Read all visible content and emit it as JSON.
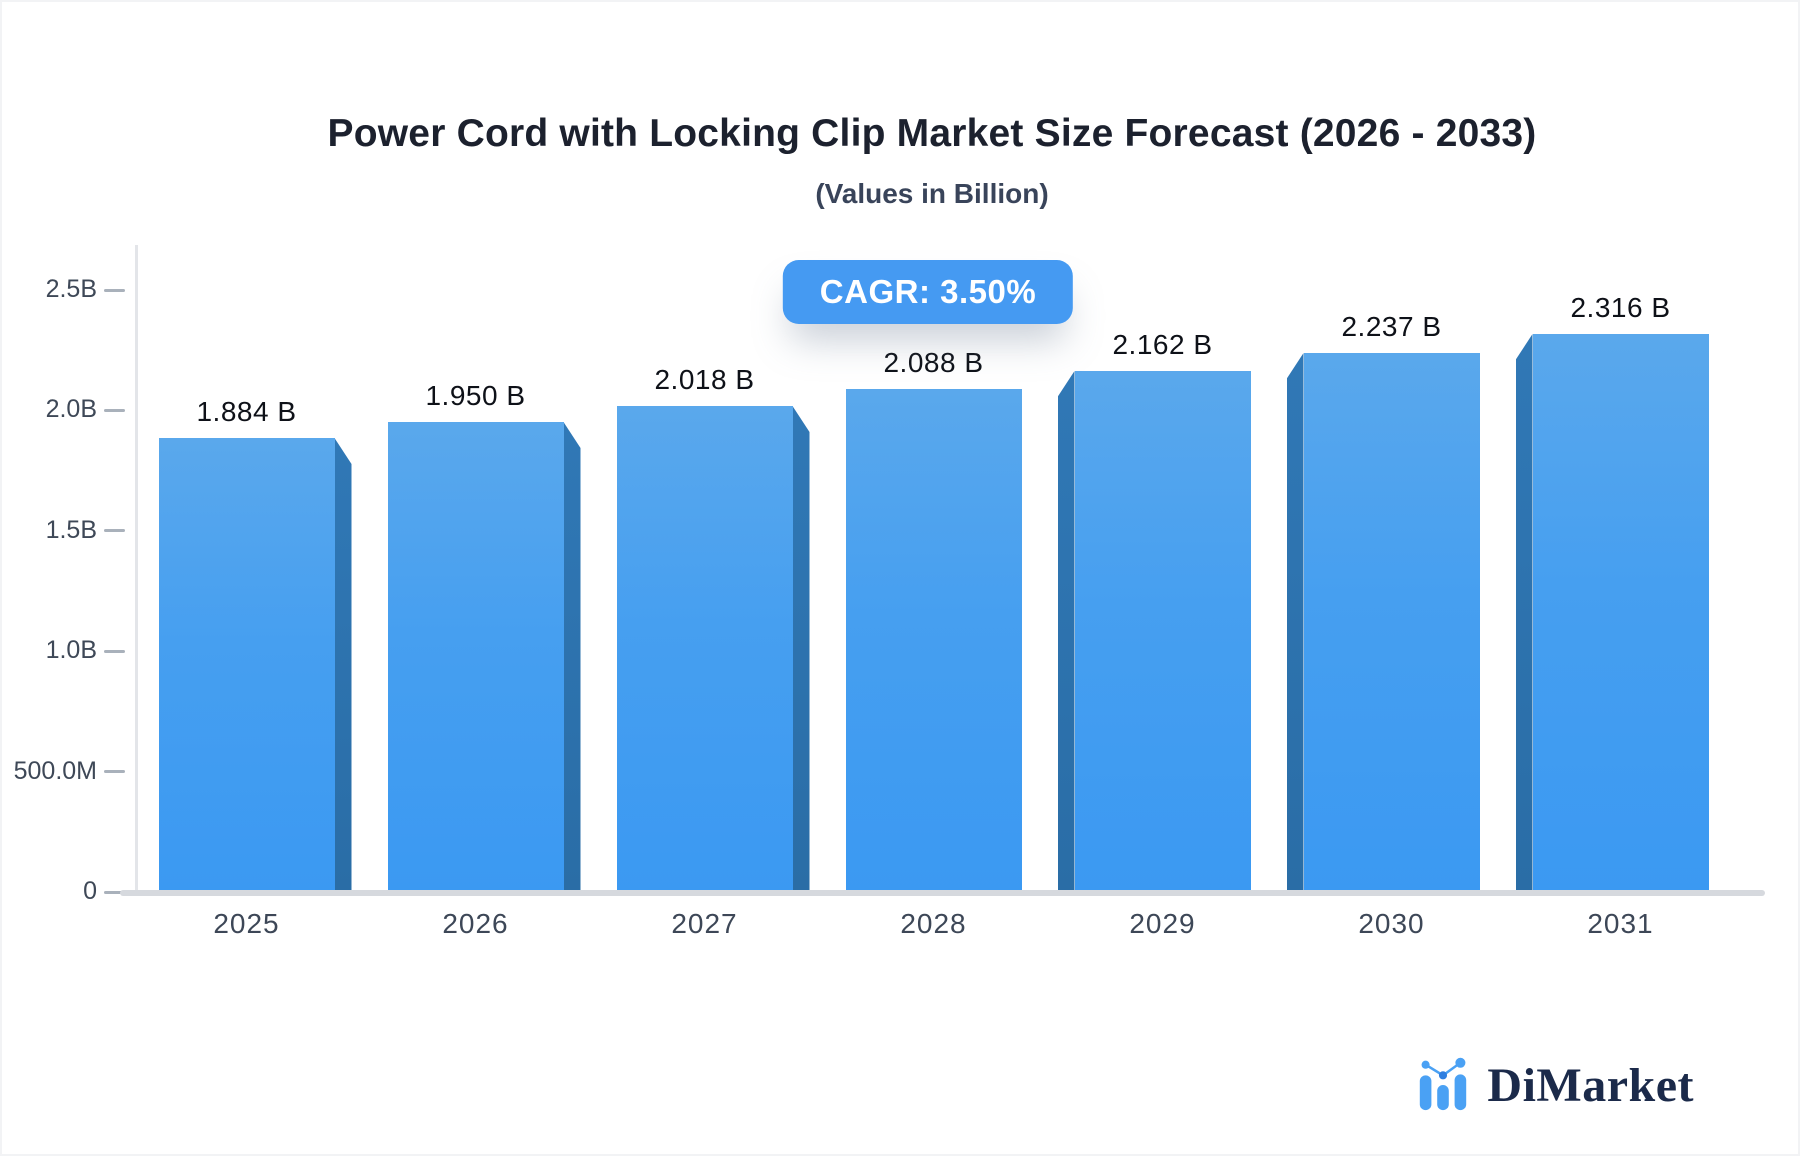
{
  "header": {
    "title": "Power Cord with Locking Clip Market Size Forecast (2026 - 2033)",
    "subtitle": "(Values in Billion)"
  },
  "badge": {
    "label": "CAGR: 3.50%"
  },
  "chart_data": {
    "type": "bar",
    "title": "Power Cord with Locking Clip Market Size Forecast (2026 - 2033)",
    "subtitle": "(Values in Billion)",
    "categories": [
      "2025",
      "2026",
      "2027",
      "2028",
      "2029",
      "2030",
      "2031"
    ],
    "values": [
      1.884,
      1.95,
      2.018,
      2.088,
      2.162,
      2.237,
      2.316
    ],
    "value_labels": [
      "1.884 B",
      "1.950 B",
      "2.018 B",
      "2.088 B",
      "2.162 B",
      "2.237 B",
      "2.316 B"
    ],
    "unit": "Billion",
    "ylim": [
      0,
      2.5
    ],
    "yticks": [
      {
        "value": 0,
        "label": "0"
      },
      {
        "value": 0.5,
        "label": "500.0M"
      },
      {
        "value": 1.0,
        "label": "1.0B"
      },
      {
        "value": 1.5,
        "label": "1.5B"
      },
      {
        "value": 2.0,
        "label": "2.0B"
      },
      {
        "value": 2.5,
        "label": "2.5B"
      }
    ],
    "grid": false,
    "legend": "none",
    "style_3d": true,
    "colors": {
      "bar_top": "#5aa8ec",
      "bar_mid": "#469ff0",
      "bar_bottom": "#3b99f2",
      "bar_side_top": "#3078b6",
      "bar_side_bottom": "#2a6da6",
      "axis_line": "#d6d9de",
      "tick_text": "#3e4857",
      "value_text": "#0e1118",
      "accent": "#459af2"
    }
  },
  "logo": {
    "text": "DiMarket"
  }
}
